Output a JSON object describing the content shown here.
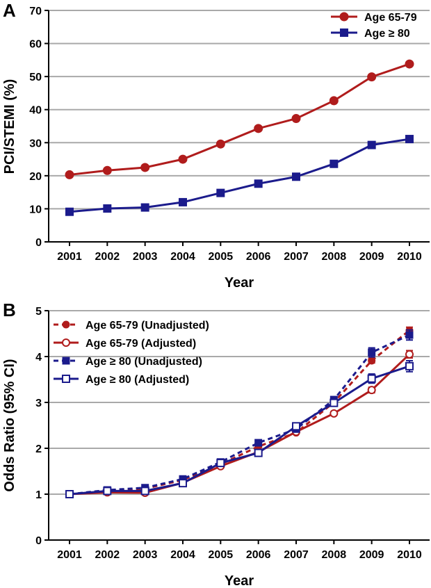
{
  "chart_data": [
    {
      "panel": "A",
      "type": "line",
      "xlabel": "Year",
      "ylabel": "PCI/STEMI (%)",
      "categories": [
        "2001",
        "2002",
        "2003",
        "2004",
        "2005",
        "2006",
        "2007",
        "2008",
        "2009",
        "2010"
      ],
      "ylim": [
        0,
        70
      ],
      "yticks": [
        0,
        10,
        20,
        30,
        40,
        50,
        60,
        70
      ],
      "grid": true,
      "legend_position": "top-right",
      "series": [
        {
          "name": "Age 65-79",
          "color": "#b01c1c",
          "marker": "circle",
          "values": [
            20.3,
            21.6,
            22.5,
            25.0,
            29.6,
            34.3,
            37.3,
            42.7,
            49.9,
            53.8
          ]
        },
        {
          "name": "Age ≥ 80",
          "color": "#1b1b8c",
          "marker": "square",
          "values": [
            9.1,
            10.1,
            10.4,
            12.0,
            14.8,
            17.6,
            19.7,
            23.6,
            29.3,
            31.1
          ]
        }
      ]
    },
    {
      "panel": "B",
      "type": "line",
      "xlabel": "Year",
      "ylabel": "Odds Ratio (95% CI)",
      "categories": [
        "2001",
        "2002",
        "2003",
        "2004",
        "2005",
        "2006",
        "2007",
        "2008",
        "2009",
        "2010"
      ],
      "ylim": [
        0,
        5
      ],
      "yticks": [
        0,
        1,
        2,
        3,
        4,
        5
      ],
      "grid": true,
      "legend_position": "top-left",
      "series": [
        {
          "name": "Age 65-79 (Unadjusted)",
          "color": "#b01c1c",
          "marker": "circle-filled",
          "dashed": true,
          "values": [
            1.0,
            1.07,
            1.12,
            1.31,
            1.65,
            2.04,
            2.34,
            3.0,
            3.91,
            4.57
          ],
          "ci_half": [
            0,
            0,
            0,
            0,
            0,
            0,
            0,
            0,
            0.05,
            0.07
          ]
        },
        {
          "name": "Age 65-79 (Adjusted)",
          "color": "#b01c1c",
          "marker": "circle-open",
          "dashed": false,
          "values": [
            1.0,
            1.04,
            1.03,
            1.25,
            1.61,
            1.92,
            2.36,
            2.76,
            3.27,
            4.05
          ],
          "ci_half": [
            0,
            0,
            0,
            0,
            0,
            0,
            0,
            0,
            0.06,
            0.08
          ]
        },
        {
          "name": "Age ≥ 80 (Unadjusted)",
          "color": "#1b1b8c",
          "marker": "square-filled",
          "dashed": true,
          "values": [
            1.0,
            1.09,
            1.14,
            1.33,
            1.7,
            2.12,
            2.42,
            3.06,
            4.09,
            4.47
          ],
          "ci_half": [
            0,
            0,
            0,
            0,
            0,
            0,
            0,
            0.05,
            0.1,
            0.11
          ]
        },
        {
          "name": "Age ≥ 80 (Adjusted)",
          "color": "#1b1b8c",
          "marker": "square-open",
          "dashed": false,
          "values": [
            1.0,
            1.07,
            1.07,
            1.24,
            1.68,
            1.9,
            2.48,
            2.99,
            3.52,
            3.79
          ],
          "ci_half": [
            0,
            0,
            0,
            0,
            0,
            0,
            0,
            0.05,
            0.1,
            0.12
          ]
        }
      ]
    }
  ]
}
